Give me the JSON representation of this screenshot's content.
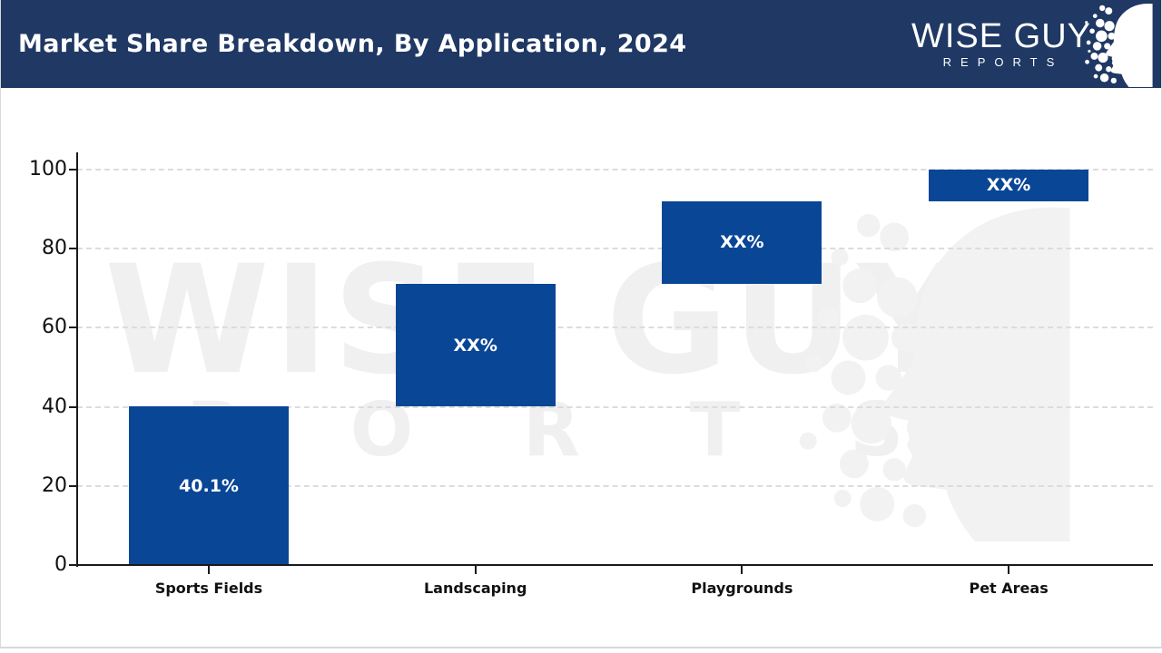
{
  "header": {
    "title": "Market Share Breakdown, By Application, 2024",
    "logo": {
      "name": "WISE GUY",
      "sub": "REPORTS"
    }
  },
  "watermark": {
    "line1": "WISE GUY",
    "line2": "P O R T S"
  },
  "colors": {
    "header_bg": "#1f3864",
    "bar_fill": "#0a4696",
    "bar_label": "#ffffff",
    "gridline": "#dcdcdc",
    "axis": "#1a1a1a",
    "watermark": "#f0f0f1"
  },
  "chart_data": {
    "type": "bar",
    "subtype": "waterfall",
    "title": "Market Share Breakdown, By Application, 2024",
    "categories": [
      "Sports Fields",
      "Landscaping",
      "Playgrounds",
      "Pet Areas"
    ],
    "segments": [
      {
        "category": "Sports Fields",
        "start": 0,
        "end": 40.1,
        "value": 40.1,
        "label": "40.1%"
      },
      {
        "category": "Landscaping",
        "start": 40.1,
        "end": 71.1,
        "value": 31.0,
        "label": "XX%"
      },
      {
        "category": "Playgrounds",
        "start": 71.1,
        "end": 92.0,
        "value": 20.9,
        "label": "XX%"
      },
      {
        "category": "Pet Areas",
        "start": 92.0,
        "end": 100.0,
        "value": 8.0,
        "label": "XX%"
      }
    ],
    "xlabel": "",
    "ylabel": "",
    "y_ticks": [
      0,
      20,
      40,
      60,
      80,
      100
    ],
    "ylim": [
      0,
      105
    ],
    "grid": "horizontal-dashed",
    "legend": "none"
  }
}
